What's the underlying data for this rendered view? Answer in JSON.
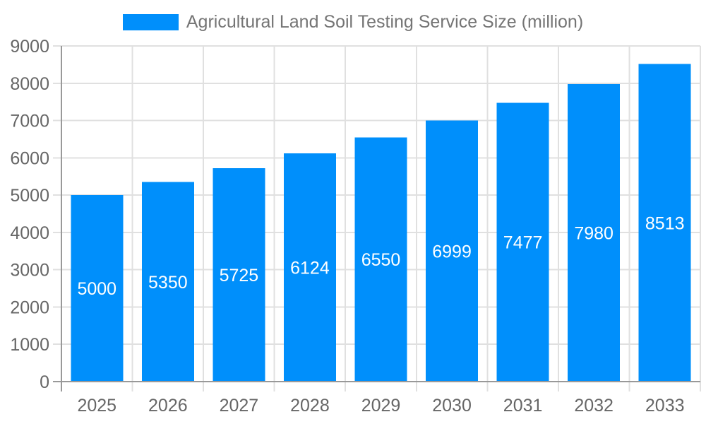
{
  "chart_data": {
    "type": "bar",
    "title": "Agricultural Land Soil Testing Service Size (million)",
    "categories": [
      "2025",
      "2026",
      "2027",
      "2028",
      "2029",
      "2030",
      "2031",
      "2032",
      "2033"
    ],
    "values": [
      5000,
      5350,
      5725,
      6124,
      6550,
      6999,
      7477,
      7980,
      8513
    ],
    "xlabel": "",
    "ylabel": "",
    "ylim": [
      0,
      9000
    ],
    "ytick_step": 1000,
    "grid": true,
    "legend_position": "top",
    "colors": {
      "bar": "#008FFB",
      "bar_label": "#ffffff",
      "grid_line": "#e0e0e0",
      "axis_line": "#999999",
      "tick_label": "#666666",
      "legend_label": "#757575"
    }
  }
}
